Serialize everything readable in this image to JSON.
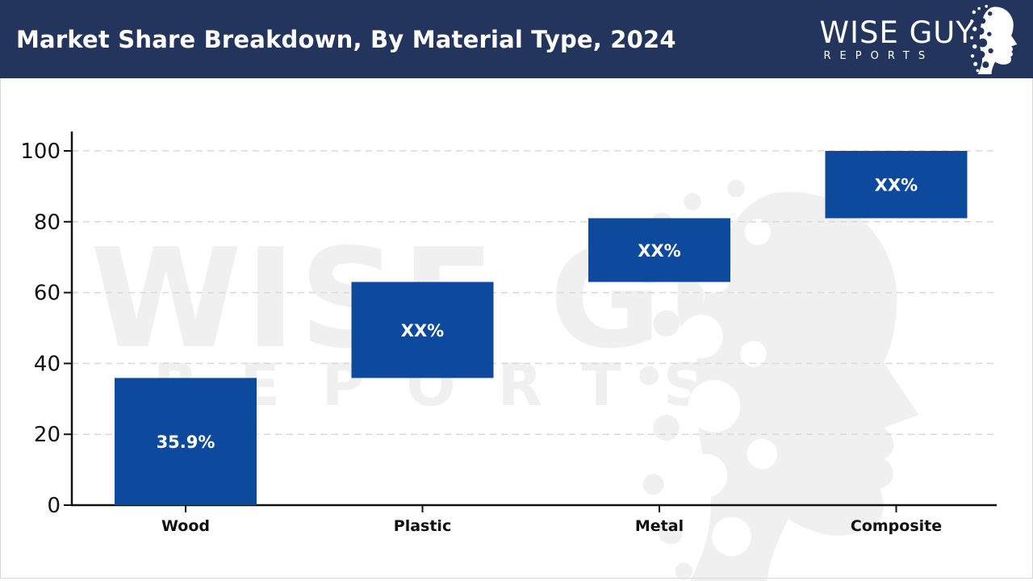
{
  "header": {
    "title": "Market Share Breakdown, By Material Type, 2024",
    "brand": {
      "line1": "WISE GUY",
      "line2": "REPORTS"
    },
    "bg_color": "#23355c"
  },
  "watermark": {
    "line1": "WISE GU",
    "line2": "REPORTS"
  },
  "chart_data": {
    "type": "bar",
    "variant": "waterfall",
    "title": "Market Share Breakdown, By Material Type, 2024",
    "categories": [
      "Wood",
      "Plastic",
      "Metal",
      "Composite"
    ],
    "segments": [
      {
        "category": "Wood",
        "start": 0,
        "end": 35.9,
        "label": "35.9%"
      },
      {
        "category": "Plastic",
        "start": 35.9,
        "end": 63,
        "label": "XX%"
      },
      {
        "category": "Metal",
        "start": 63,
        "end": 81,
        "label": "XX%"
      },
      {
        "category": "Composite",
        "start": 81,
        "end": 100,
        "label": "XX%"
      }
    ],
    "xlabel": "",
    "ylabel": "",
    "ylim": [
      0,
      100
    ],
    "yticks": [
      0,
      20,
      40,
      60,
      80,
      100
    ],
    "bar_color": "#0d4a9d",
    "bar_label_color": "#ffffff",
    "axis_color": "#111111",
    "grid": {
      "axis": "y",
      "style": "dashed",
      "color": "#d9d9d9",
      "on": true
    },
    "legend": "none"
  }
}
